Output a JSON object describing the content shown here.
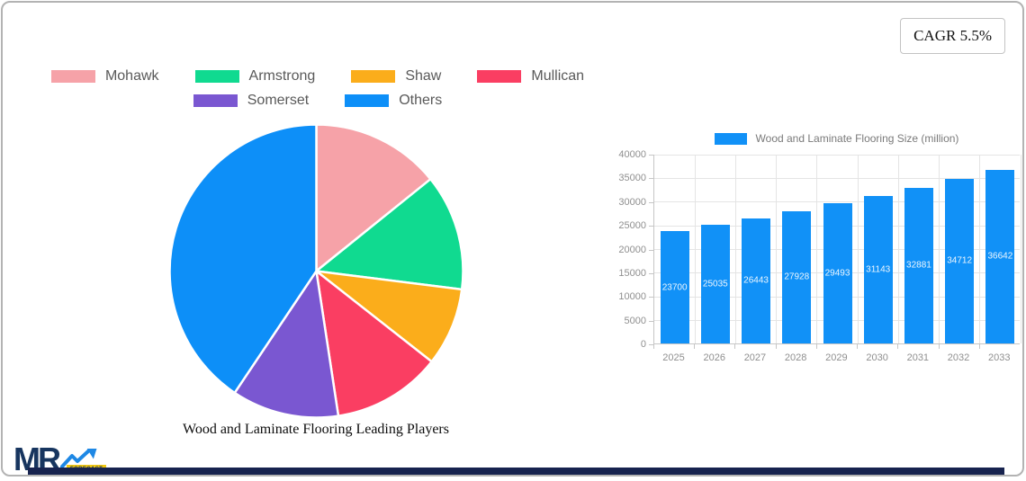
{
  "cagr_badge": "CAGR 5.5%",
  "pie_title": "Wood and Laminate Flooring Leading Players",
  "logo": {
    "text": "MR",
    "badge": "FORECAST"
  },
  "chart_data": [
    {
      "type": "pie",
      "title": "Wood and Laminate Flooring Leading Players",
      "labels": [
        "Mohawk",
        "Armstrong",
        "Shaw",
        "Mullican",
        "Somerset",
        "Others"
      ],
      "values": [
        14.2,
        12.8,
        8.6,
        12.0,
        11.8,
        40.6
      ],
      "colors": [
        "#F6A2A8",
        "#10DA90",
        "#FBAD1B",
        "#FA3E62",
        "#7A57D1",
        "#0D8FF8"
      ],
      "start_angle": "top",
      "direction": "clockwise",
      "legend_position": "top"
    },
    {
      "type": "bar",
      "legend": "Wood and Laminate Flooring Size (million)",
      "categories": [
        "2025",
        "2026",
        "2027",
        "2028",
        "2029",
        "2030",
        "2031",
        "2032",
        "2033"
      ],
      "values": [
        23700,
        25035,
        26443,
        27928,
        29493,
        31143,
        32881,
        34712,
        36642
      ],
      "bar_color": "#1191F7",
      "value_label_color": "#ffffff",
      "ylim": [
        0,
        40000
      ],
      "yticks": [
        0,
        5000,
        10000,
        15000,
        20000,
        25000,
        30000,
        35000,
        40000
      ],
      "grid": true,
      "legend_position": "top"
    }
  ]
}
